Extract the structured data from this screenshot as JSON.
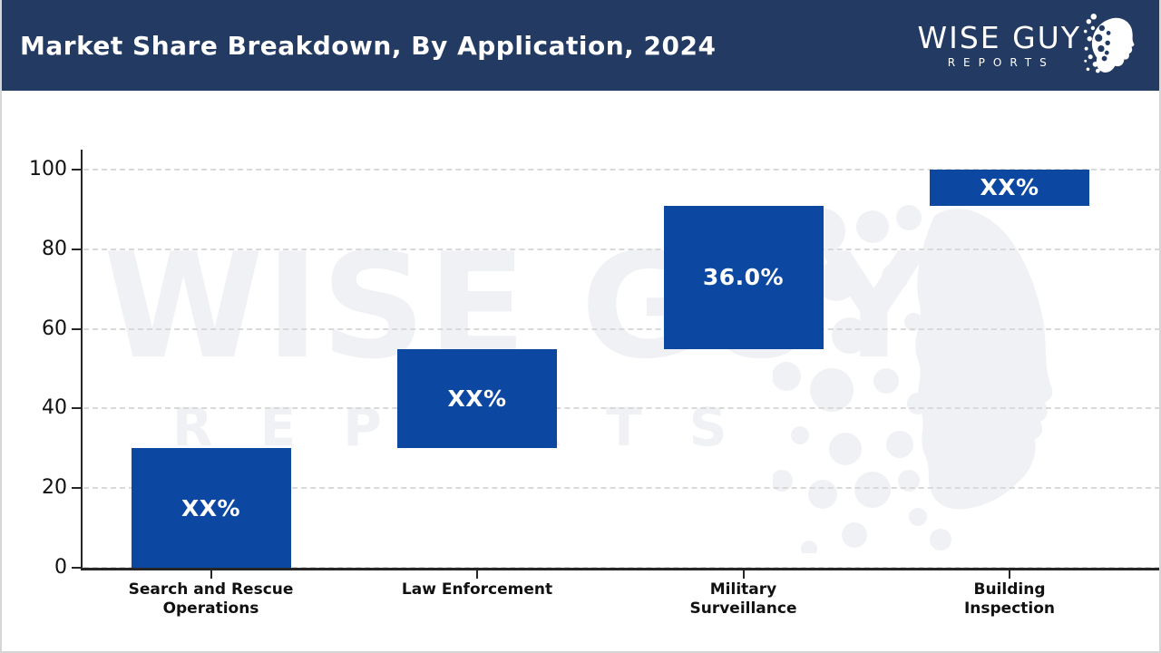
{
  "header": {
    "title": "Market Share Breakdown, By Application, 2024",
    "logo": {
      "line1": "WISE GUY",
      "line2": "REPORTS"
    }
  },
  "watermark": {
    "line1": "WISE GUY",
    "line2": "REPORTS"
  },
  "chart_data": {
    "type": "bar",
    "variant": "floating-segment waterfall of market share",
    "title": "Market Share Breakdown, By Application, 2024",
    "categories": [
      "Search and Rescue\nOperations",
      "Law Enforcement",
      "Military\nSurveillance",
      "Building\nInspection"
    ],
    "segments": [
      {
        "category": "Search and Rescue Operations",
        "start": 0,
        "end": 30,
        "value_label": "XX%"
      },
      {
        "category": "Law Enforcement",
        "start": 30,
        "end": 55,
        "value_label": "XX%"
      },
      {
        "category": "Military Surveillance",
        "start": 55,
        "end": 91,
        "value_label": "36.0%",
        "share_pct": 36.0
      },
      {
        "category": "Building Inspection",
        "start": 91,
        "end": 100,
        "value_label": "XX%"
      }
    ],
    "ylim": [
      0,
      100
    ],
    "yticks": [
      0,
      20,
      40,
      60,
      80,
      100
    ],
    "xlabel": "",
    "ylabel": "",
    "grid": "horizontal dashed",
    "legend": "none"
  },
  "colors": {
    "header_bg": "#233a63",
    "bar_blue": "#0c47a1",
    "axis": "#262626",
    "grid_line": "#d9d9d9",
    "tick_text": "#111111",
    "bar_label": "#ffffff",
    "watermark": "#f0f1f4",
    "frame_border": "#d6d6d8",
    "canvas": "#ffffff"
  }
}
